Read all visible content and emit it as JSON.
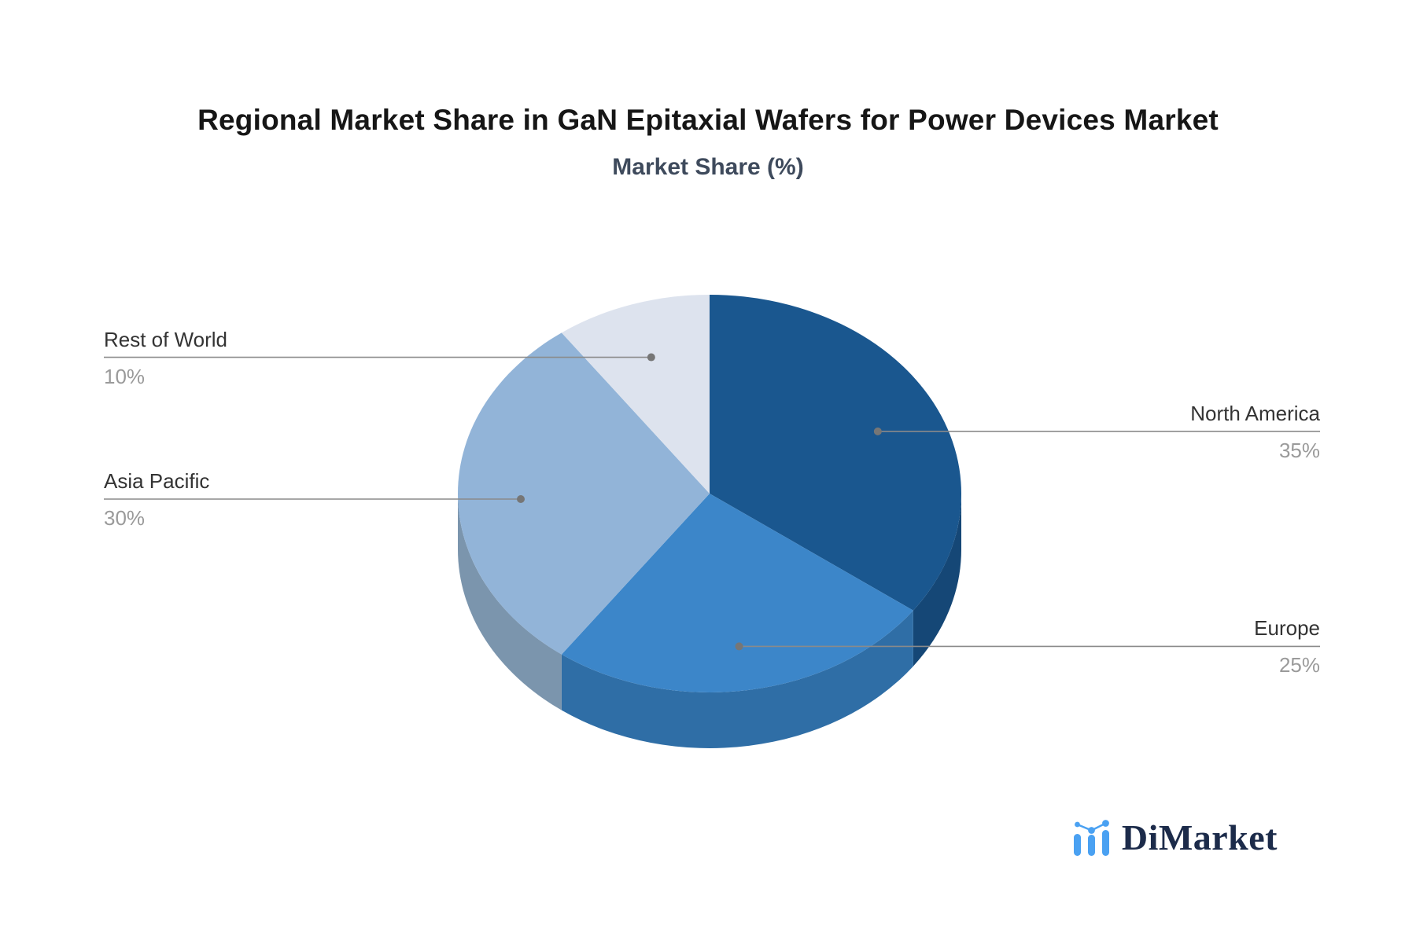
{
  "chart_data": {
    "type": "pie",
    "style": "3d",
    "title": "Regional Market Share in GaN Epitaxial Wafers for Power Devices Market",
    "subtitle": "Market Share (%)",
    "unit": "%",
    "legend_position": "none",
    "labels": "outside with leader lines",
    "slices": [
      {
        "label": "North America",
        "value": 35,
        "pct_label": "35%",
        "color": "#1a578f",
        "side_color": "#154776"
      },
      {
        "label": "Europe",
        "value": 25,
        "pct_label": "25%",
        "color": "#3c86c9",
        "side_color": "#2f6ea6"
      },
      {
        "label": "Asia Pacific",
        "value": 30,
        "pct_label": "30%",
        "color": "#92b4d8",
        "side_color": "#7b95ad"
      },
      {
        "label": "Rest of World",
        "value": 10,
        "pct_label": "10%",
        "color": "#dde3ee"
      }
    ],
    "leader_line_color": "#8a8a8a",
    "leader_dot_color": "#767676",
    "label_name_color": "#333333",
    "label_pct_color": "#9a9a9a"
  },
  "branding": {
    "logo_text": "DiMarket",
    "logo_icon": "bar-line-chart-icon",
    "text_color": "#1c2b4a",
    "icon_color": "#4aa1f2"
  }
}
